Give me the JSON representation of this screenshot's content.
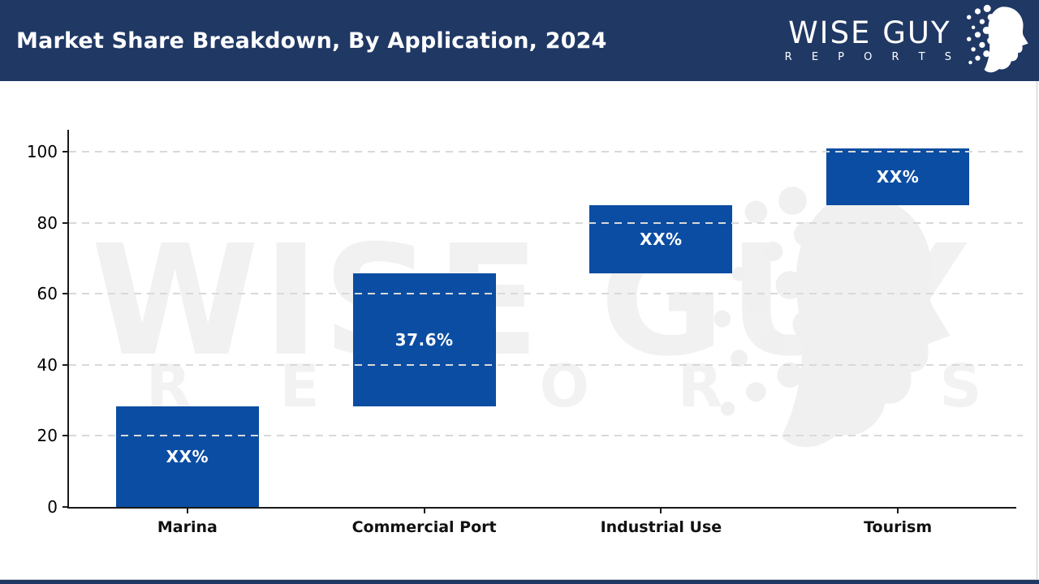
{
  "header": {
    "title": "Market Share Breakdown, By Application, 2024",
    "bg_color": "#203864",
    "logo": {
      "wordmark": "WISE GUY",
      "subtitle": "R E P O R T S"
    }
  },
  "watermark": {
    "wordmark": "WISE GUY",
    "subtitle": "R E P O R T S"
  },
  "chart_data": {
    "type": "bar",
    "subtype": "floating-segment-waterfall",
    "title": "Market Share Breakdown, By Application, 2024",
    "categories": [
      "Marina",
      "Commercial Port",
      "Industrial Use",
      "Tourism"
    ],
    "segments": [
      {
        "category": "Marina",
        "start": 0,
        "end": 28.2,
        "value_label": "XX%"
      },
      {
        "category": "Commercial Port",
        "start": 28.2,
        "end": 65.8,
        "value_label": "37.6%"
      },
      {
        "category": "Industrial Use",
        "start": 65.8,
        "end": 85.0,
        "value_label": "XX%"
      },
      {
        "category": "Tourism",
        "start": 85.0,
        "end": 100.9,
        "value_label": "XX%"
      }
    ],
    "yticks": [
      0,
      20,
      40,
      60,
      80,
      100
    ],
    "ylim": [
      0,
      106
    ],
    "xlabel": "",
    "ylabel": "",
    "legend": null,
    "grid": "dashed-horizontal-over-bars",
    "bar_color": "#0b4da2",
    "bar_label_color": "#ffffff",
    "gridline_color": "#d9d9d9",
    "axis_color": "#1a1a1a"
  }
}
